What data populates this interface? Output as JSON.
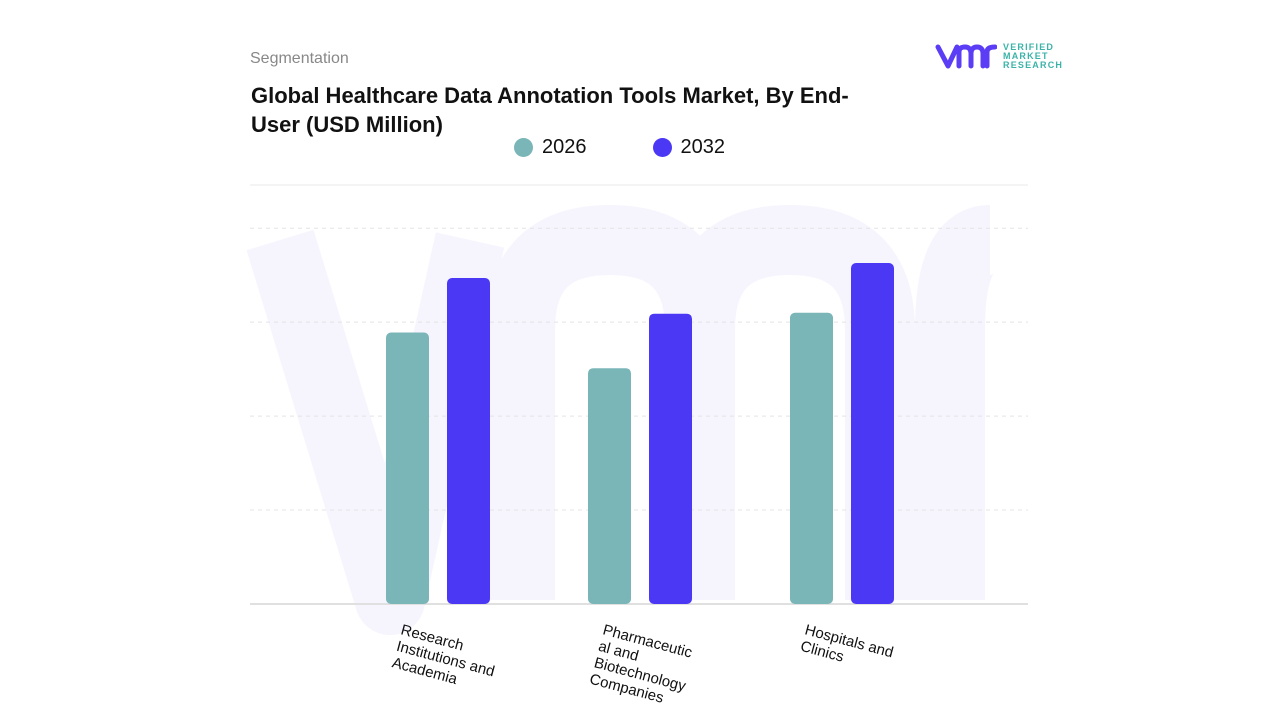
{
  "header": {
    "segment_label": "Segmentation",
    "title": "Global Healthcare Data Annotation Tools Market, By End-User (USD Million)"
  },
  "logo": {
    "line1": "VERIFIED",
    "line2": "MARKET",
    "line3": "RESEARCH",
    "colors": {
      "mark": "#5b3df5",
      "text": "#3bb3a8"
    }
  },
  "chart_data": {
    "type": "bar",
    "title": "Global Healthcare Data Annotation Tools Market, By End-User (USD Million)",
    "categories": [
      "Research Institutions and Academia",
      "Pharmaceutical and Biotechnology Companies",
      "Hospitals and Clinics"
    ],
    "category_lines": [
      [
        "Research",
        "Institutions and",
        "Academia"
      ],
      [
        "Pharmaceutic",
        "al and",
        "Biotechnology",
        "Companies"
      ],
      [
        "Hospitals and",
        "Clinics"
      ]
    ],
    "series": [
      {
        "name": "2026",
        "color": "#7ab5b8",
        "values": [
          2.89,
          2.51,
          3.1
        ]
      },
      {
        "name": "2032",
        "color": "#4b38f5",
        "values": [
          3.47,
          3.09,
          3.63
        ]
      }
    ],
    "ylim": [
      0,
      4.46
    ],
    "yticks_unlabeled": [
      1,
      2,
      3,
      4
    ],
    "grid": true,
    "legend_placement": "top-center",
    "xlabel": "",
    "ylabel": ""
  }
}
